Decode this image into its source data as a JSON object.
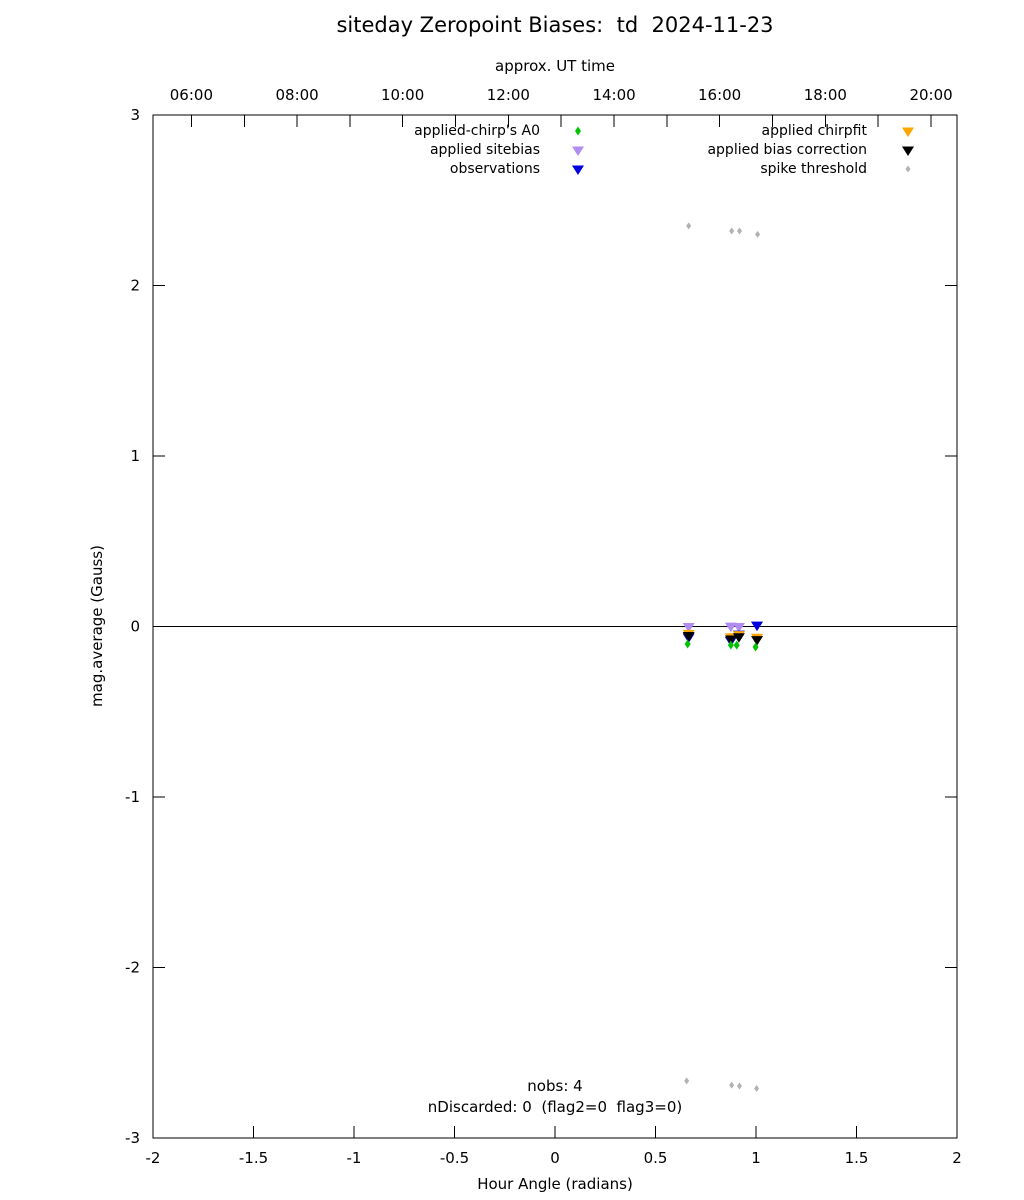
{
  "title": "siteday Zeropoint Biases:  td  2024-11-23",
  "annotations": {
    "nobs": "nobs: 4",
    "ndiscarded": "nDiscarded: 0  (flag2=0  flag3=0)"
  },
  "legend": {
    "columns": [
      {
        "items": [
          {
            "label": "applied-chirp's A0",
            "marker": "diamond-small",
            "color": "#00c300"
          },
          {
            "label": "applied sitebias",
            "marker": "triangle-down",
            "color": "#b18cf2"
          },
          {
            "label": "observations",
            "marker": "triangle-down",
            "color": "#0000e0"
          }
        ]
      },
      {
        "items": [
          {
            "label": "applied chirpfit",
            "marker": "triangle-down",
            "color": "#ffa500"
          },
          {
            "label": "applied bias correction",
            "marker": "triangle-down",
            "color": "#000000"
          },
          {
            "label": "spike threshold",
            "marker": "dot-small",
            "color": "#b2b2b2"
          }
        ]
      }
    ]
  },
  "chart_data": {
    "type": "scatter",
    "title": "siteday Zeropoint Biases:  td  2024-11-23",
    "xlabel": "Hour Angle (radians)",
    "ylabel": "mag.average (Gauss)",
    "x2label": "approx. UT time",
    "xlim": [
      -2,
      2
    ],
    "ylim": [
      -3,
      3
    ],
    "grid": false,
    "zero_line": true,
    "legend_position": "top-inside",
    "x_ticks": [
      {
        "v": -2,
        "label": "-2"
      },
      {
        "v": -1.5,
        "label": "-1.5"
      },
      {
        "v": -1,
        "label": "-1"
      },
      {
        "v": -0.5,
        "label": "-0.5"
      },
      {
        "v": 0,
        "label": "0"
      },
      {
        "v": 0.5,
        "label": "0.5"
      },
      {
        "v": 1,
        "label": "1"
      },
      {
        "v": 1.5,
        "label": "1.5"
      },
      {
        "v": 2,
        "label": "2"
      }
    ],
    "y_ticks": [
      {
        "v": -3,
        "label": "-3"
      },
      {
        "v": -2,
        "label": "-2"
      },
      {
        "v": -1,
        "label": "-1"
      },
      {
        "v": 0,
        "label": "0"
      },
      {
        "v": 1,
        "label": "1"
      },
      {
        "v": 2,
        "label": "2"
      },
      {
        "v": 3,
        "label": "3"
      }
    ],
    "x2_ticks": [
      {
        "ha": -1.809,
        "label": "06:00"
      },
      {
        "ha": -1.546,
        "label": ""
      },
      {
        "ha": -1.283,
        "label": "08:00"
      },
      {
        "ha": -1.02,
        "label": ""
      },
      {
        "ha": -0.758,
        "label": "10:00"
      },
      {
        "ha": -0.495,
        "label": ""
      },
      {
        "ha": -0.232,
        "label": "12:00"
      },
      {
        "ha": 0.031,
        "label": ""
      },
      {
        "ha": 0.294,
        "label": "14:00"
      },
      {
        "ha": 0.556,
        "label": ""
      },
      {
        "ha": 0.819,
        "label": "16:00"
      },
      {
        "ha": 1.082,
        "label": ""
      },
      {
        "ha": 1.345,
        "label": "18:00"
      },
      {
        "ha": 1.608,
        "label": ""
      },
      {
        "ha": 1.871,
        "label": "20:00"
      }
    ],
    "series": [
      {
        "name": "applied sitebias",
        "marker": "triangle-down",
        "color": "#b18cf2",
        "points": [
          [
            0.665,
            0.0
          ],
          [
            0.875,
            0.002
          ],
          [
            0.915,
            0.0
          ],
          [
            1.005,
            0.008
          ]
        ]
      },
      {
        "name": "observations",
        "marker": "triangle-down",
        "color": "#0000e0",
        "points": [
          [
            0.665,
            -0.062
          ],
          [
            0.875,
            -0.082
          ],
          [
            0.915,
            -0.045
          ],
          [
            1.005,
            0.008
          ]
        ]
      },
      {
        "name": "applied chirpfit",
        "marker": "triangle-down",
        "color": "#ffa500",
        "points": [
          [
            0.665,
            -0.04
          ],
          [
            0.875,
            -0.06
          ],
          [
            0.915,
            -0.048
          ],
          [
            1.005,
            -0.063
          ]
        ]
      },
      {
        "name": "applied bias correction",
        "marker": "triangle-down",
        "color": "#000000",
        "points": [
          [
            0.665,
            -0.053
          ],
          [
            0.875,
            -0.073
          ],
          [
            0.915,
            -0.06
          ],
          [
            1.005,
            -0.077
          ]
        ]
      },
      {
        "name": "applied-chirp's A0",
        "marker": "diamond-small",
        "color": "#00c300",
        "points": [
          [
            0.66,
            -0.103
          ],
          [
            0.875,
            -0.109
          ],
          [
            0.904,
            -0.109
          ],
          [
            0.998,
            -0.12
          ]
        ]
      },
      {
        "name": "spike threshold",
        "marker": "dot-small",
        "color": "#b2b2b2",
        "points": [
          [
            0.665,
            2.35
          ],
          [
            0.879,
            2.32
          ],
          [
            0.918,
            2.32
          ],
          [
            1.008,
            2.3
          ],
          [
            0.655,
            -2.665
          ],
          [
            0.879,
            -2.69
          ],
          [
            0.918,
            -2.695
          ],
          [
            1.003,
            -2.71
          ]
        ]
      }
    ]
  }
}
